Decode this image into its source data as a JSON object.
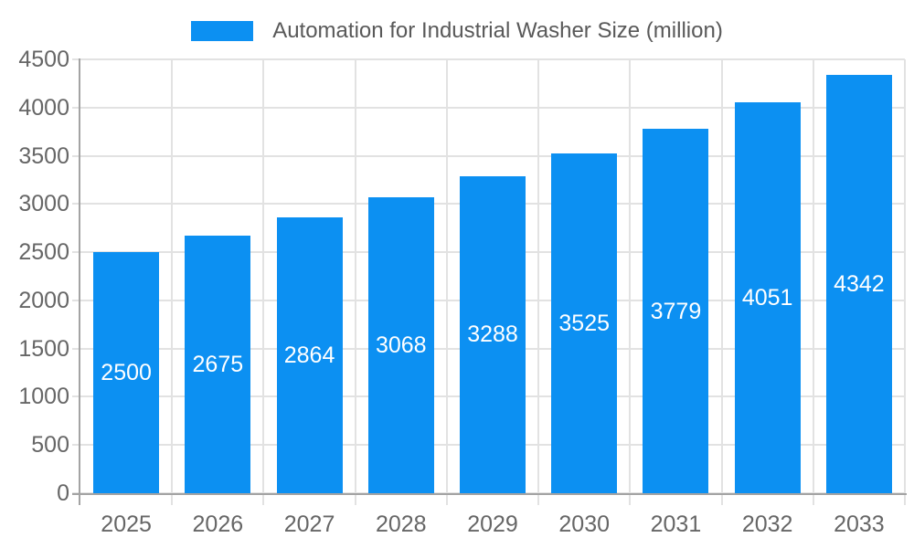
{
  "legend": {
    "label": "Automation for Industrial Washer Size (million)"
  },
  "chart_data": {
    "type": "bar",
    "title": "Automation for Industrial Washer Size (million)",
    "categories": [
      "2025",
      "2026",
      "2027",
      "2028",
      "2029",
      "2030",
      "2031",
      "2032",
      "2033"
    ],
    "values": [
      2500,
      2675,
      2864,
      3068,
      3288,
      3525,
      3779,
      4051,
      4342
    ],
    "xlabel": "",
    "ylabel": "",
    "ylim": [
      0,
      4500
    ],
    "yticks": [
      0,
      500,
      1000,
      1500,
      2000,
      2500,
      3000,
      3500,
      4000,
      4500
    ],
    "grid": true,
    "legend_position": "top-center",
    "bar_value_labels": "inside-middle",
    "colors": {
      "bar": "#0c90f2",
      "grid": "#e2e2e2",
      "axis": "#a3a3a3",
      "tick_label": "#666666",
      "legend_text": "#595959",
      "bar_label": "#ffffff",
      "background": "#ffffff"
    }
  }
}
